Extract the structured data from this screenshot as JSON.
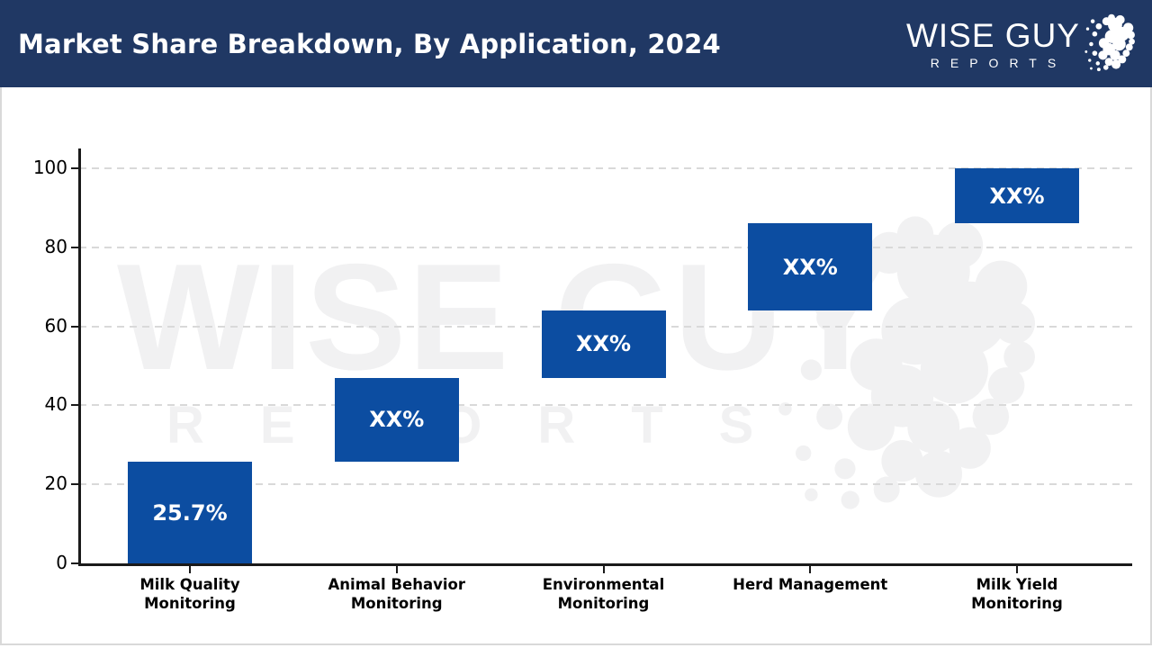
{
  "header": {
    "title": "Market Share Breakdown, By Application, 2024",
    "logo": {
      "line1": "WISE GUY",
      "line2": "REPORTS"
    }
  },
  "watermark": {
    "line1": "WISE GUY",
    "line2": "REPORTS"
  },
  "chart_data": {
    "type": "bar",
    "subtype": "waterfall",
    "title": "Market Share Breakdown, By Application, 2024",
    "categories": [
      "Milk Quality\nMonitoring",
      "Animal Behavior\nMonitoring",
      "Environmental\nMonitoring",
      "Herd Management",
      "Milk Yield\nMonitoring"
    ],
    "segments": [
      {
        "start": 0,
        "end": 25.7,
        "label": "25.7%"
      },
      {
        "start": 25.7,
        "end": 47,
        "label": "XX%"
      },
      {
        "start": 47,
        "end": 64,
        "label": "XX%"
      },
      {
        "start": 64,
        "end": 86,
        "label": "XX%"
      },
      {
        "start": 86,
        "end": 100,
        "label": "XX%"
      }
    ],
    "y_ticks": [
      0,
      20,
      40,
      60,
      80,
      100
    ],
    "ylim": [
      0,
      100
    ],
    "xlabel": "",
    "ylabel": "",
    "grid": "dashed-horizontal",
    "legend": "none",
    "bar_color": "#0c4da1",
    "bar_label_color": "#ffffff"
  },
  "colors": {
    "header_bg": "#203864",
    "bar": "#0c4da1",
    "watermark": "#f1f1f2",
    "gridline": "#d9d9d9",
    "axis": "#1a1a1a",
    "frame": "#d9d9d9"
  }
}
